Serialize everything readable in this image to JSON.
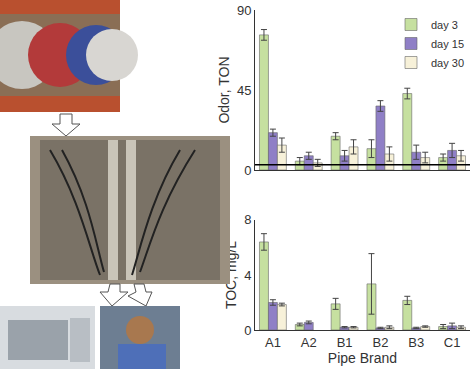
{
  "chart_data": [
    {
      "type": "bar",
      "categories": [
        "A1",
        "A2",
        "B1",
        "B2",
        "B3",
        "C1"
      ],
      "y_label": "Odor, TON",
      "ylim": [
        0,
        90
      ],
      "yticks": [
        0,
        45,
        90
      ],
      "grid": false,
      "legend": "top right",
      "tick_labels": "y",
      "reference_line": 3,
      "series": [
        {
          "name": "day 3",
          "color": "#c6e0a0",
          "values": [
            76,
            5,
            19,
            12,
            43,
            7
          ],
          "errors": [
            3,
            2,
            2,
            5,
            3,
            2
          ]
        },
        {
          "name": "day 15",
          "color": "#8f7fc6",
          "values": [
            21,
            8,
            8,
            36,
            10,
            11
          ],
          "errors": [
            2,
            2,
            3,
            3,
            4,
            4
          ]
        },
        {
          "name": "day 30",
          "color": "#f7f1d9",
          "values": [
            14,
            4,
            13,
            9,
            7,
            8
          ],
          "errors": [
            4,
            2,
            4,
            4,
            3,
            3
          ]
        }
      ]
    },
    {
      "type": "bar",
      "categories": [
        "A1",
        "A2",
        "B1",
        "B2",
        "B3",
        "C1"
      ],
      "x_label": "Pipe Brand",
      "y_label": "TOC, mg/L",
      "ylim": [
        0,
        8
      ],
      "yticks": [
        0,
        4,
        8
      ],
      "grid": false,
      "series": [
        {
          "name": "day 3",
          "color": "#c6e0a0",
          "values": [
            6.4,
            0.4,
            1.9,
            3.35,
            2.15,
            0.25
          ],
          "errors": [
            0.6,
            0.1,
            0.4,
            2.2,
            0.3,
            0.15
          ]
        },
        {
          "name": "day 15",
          "color": "#8f7fc6",
          "values": [
            2.0,
            0.55,
            0.2,
            0.15,
            0.15,
            0.3
          ],
          "errors": [
            0.2,
            0.1,
            0.05,
            0.05,
            0.05,
            0.2
          ]
        },
        {
          "name": "day 30",
          "color": "#f7f1d9",
          "values": [
            1.85,
            null,
            0.2,
            0.2,
            0.25,
            0.2
          ],
          "errors": [
            0.1,
            null,
            0.05,
            0.1,
            0.05,
            0.1
          ]
        }
      ]
    }
  ]
}
